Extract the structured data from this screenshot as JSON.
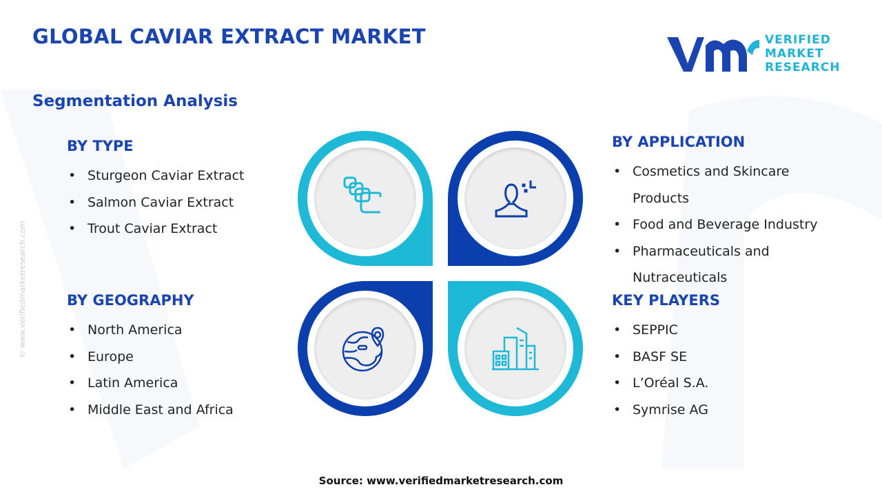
{
  "header": {
    "title": "GLOBAL CAVIAR EXTRACT MARKET",
    "subtitle": "Segmentation Analysis"
  },
  "logo": {
    "line1": "VERIFIED",
    "line2": "MARKET",
    "line3": "RESEARCH",
    "mark": "vmr"
  },
  "watermark": "© www.verifiedmarketresearch.com",
  "sections": {
    "type": {
      "heading": "BY TYPE",
      "items": [
        "Sturgeon Caviar Extract",
        "Salmon Caviar Extract",
        "Trout Caviar Extract"
      ]
    },
    "application": {
      "heading": "BY  APPLICATION",
      "items": [
        "Cosmetics and Skincare Products",
        "Food and Beverage Industry",
        "Pharmaceuticals and Nutraceuticals"
      ]
    },
    "geography": {
      "heading": "BY GEOGRAPHY",
      "items": [
        "North America",
        "Europe",
        "Latin America",
        "Middle East and Africa"
      ]
    },
    "players": {
      "heading": "KEY PLAYERS",
      "items": [
        "SEPPIC",
        "BASF SE",
        "L’Oréal S.A.",
        "Symrise AG"
      ]
    }
  },
  "colors": {
    "primary": "#1a44b0",
    "cyan": "#1db9d6",
    "dark_blue": "#0c3fae"
  },
  "icons": [
    "layers-icon",
    "person-icon",
    "globe-pin-icon",
    "buildings-icon"
  ],
  "footer": {
    "source": "Source: www.verifiedmarketresearch.com"
  }
}
